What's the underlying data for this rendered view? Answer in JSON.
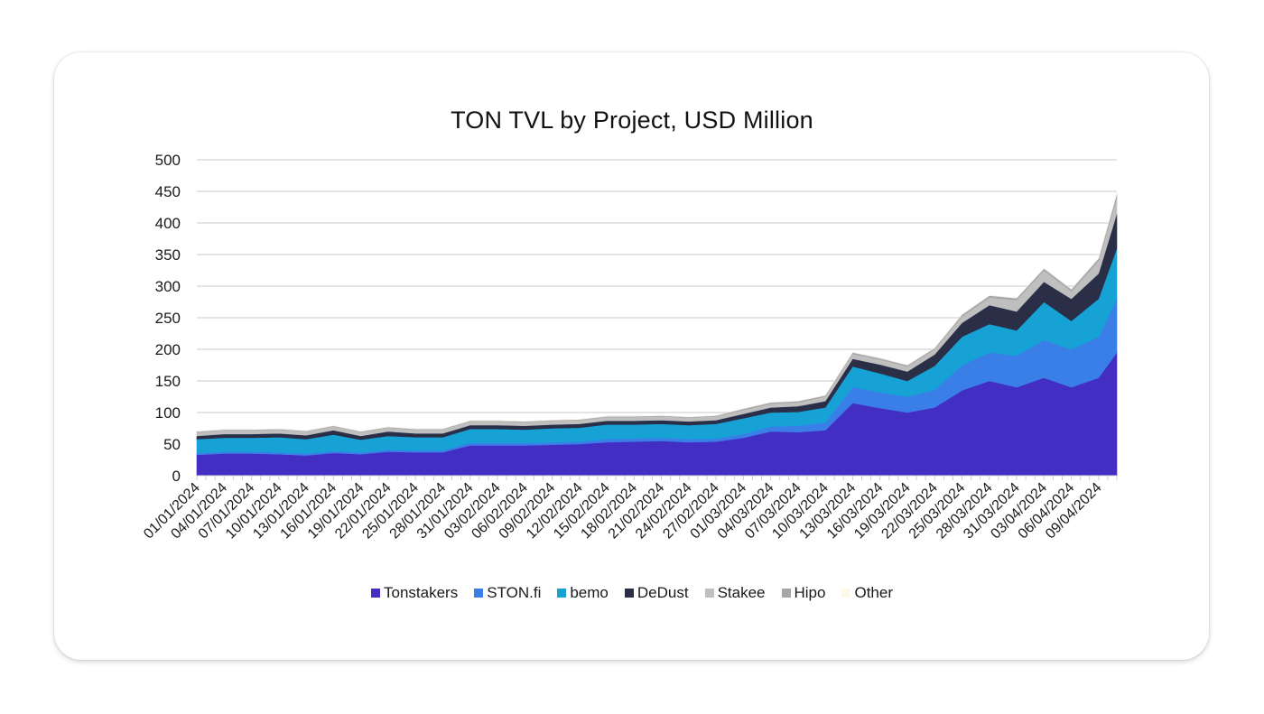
{
  "chart_data": {
    "type": "area",
    "stacked": true,
    "title": "TON TVL by Project, USD Million",
    "xlabel": "",
    "ylabel": "",
    "ylim": [
      0,
      500
    ],
    "yticks": [
      0,
      50,
      100,
      150,
      200,
      250,
      300,
      350,
      400,
      450,
      500
    ],
    "grid": true,
    "legend_position": "bottom",
    "x_tick_labels": [
      "01/01/2024",
      "04/01/2024",
      "07/01/2024",
      "10/01/2024",
      "13/01/2024",
      "16/01/2024",
      "19/01/2024",
      "22/01/2024",
      "25/01/2024",
      "28/01/2024",
      "31/01/2024",
      "03/02/2024",
      "06/02/2024",
      "09/02/2024",
      "12/02/2024",
      "15/02/2024",
      "18/02/2024",
      "21/02/2024",
      "24/02/2024",
      "27/02/2024",
      "01/03/2024",
      "04/03/2024",
      "07/03/2024",
      "10/03/2024",
      "13/03/2024",
      "16/03/2024",
      "19/03/2024",
      "22/03/2024",
      "25/03/2024",
      "28/03/2024",
      "31/03/2024",
      "03/04/2024",
      "06/04/2024",
      "09/04/2024"
    ],
    "x": [
      "01/01/2024",
      "04/01/2024",
      "07/01/2024",
      "10/01/2024",
      "13/01/2024",
      "16/01/2024",
      "19/01/2024",
      "22/01/2024",
      "25/01/2024",
      "28/01/2024",
      "31/01/2024",
      "03/02/2024",
      "06/02/2024",
      "09/02/2024",
      "12/02/2024",
      "15/02/2024",
      "18/02/2024",
      "21/02/2024",
      "24/02/2024",
      "27/02/2024",
      "01/03/2024",
      "04/03/2024",
      "07/03/2024",
      "10/03/2024",
      "13/03/2024",
      "16/03/2024",
      "19/03/2024",
      "22/03/2024",
      "25/03/2024",
      "28/03/2024",
      "31/03/2024",
      "03/04/2024",
      "06/04/2024",
      "09/04/2024",
      "11/04/2024"
    ],
    "series": [
      {
        "name": "Tonstakers",
        "color": "#432ec4",
        "values": [
          33,
          35,
          35,
          34,
          32,
          36,
          34,
          38,
          37,
          37,
          48,
          48,
          48,
          49,
          50,
          53,
          54,
          55,
          53,
          54,
          60,
          70,
          69,
          72,
          115,
          107,
          100,
          108,
          135,
          150,
          140,
          155,
          140,
          155,
          195
        ]
      },
      {
        "name": "STON.fi",
        "color": "#3a7ee8",
        "values": [
          3,
          3,
          3,
          3,
          3,
          3,
          3,
          3,
          3,
          3,
          4,
          4,
          4,
          4,
          4,
          5,
          5,
          5,
          5,
          5,
          6,
          8,
          10,
          12,
          25,
          25,
          25,
          28,
          40,
          45,
          50,
          60,
          60,
          65,
          85
        ]
      },
      {
        "name": "bemo",
        "color": "#17a2d6",
        "values": [
          22,
          22,
          22,
          24,
          23,
          26,
          20,
          22,
          21,
          21,
          22,
          22,
          21,
          22,
          22,
          23,
          22,
          22,
          22,
          23,
          25,
          22,
          22,
          24,
          33,
          30,
          25,
          38,
          45,
          45,
          40,
          60,
          45,
          60,
          80
        ]
      },
      {
        "name": "DeDust",
        "color": "#2a2f47",
        "values": [
          5,
          6,
          6,
          6,
          6,
          7,
          6,
          7,
          6,
          6,
          6,
          6,
          6,
          6,
          6,
          6,
          6,
          6,
          6,
          6,
          7,
          8,
          9,
          10,
          12,
          14,
          15,
          18,
          22,
          30,
          30,
          32,
          35,
          40,
          55
        ]
      },
      {
        "name": "Stakee",
        "color": "#bfbfbf",
        "values": [
          6,
          6,
          6,
          6,
          6,
          6,
          6,
          6,
          6,
          6,
          6,
          6,
          6,
          6,
          6,
          6,
          6,
          6,
          6,
          6,
          6,
          6,
          6,
          7,
          8,
          8,
          8,
          8,
          10,
          12,
          18,
          18,
          12,
          20,
          25
        ]
      },
      {
        "name": "Hipo",
        "color": "#a6a6a6",
        "values": [
          1,
          1,
          1,
          1,
          1,
          1,
          1,
          1,
          1,
          1,
          1,
          1,
          1,
          1,
          1,
          1,
          1,
          1,
          1,
          1,
          2,
          2,
          2,
          2,
          2,
          2,
          2,
          2,
          3,
          3,
          3,
          3,
          3,
          4,
          6
        ]
      },
      {
        "name": "Other",
        "color": "#fdf8e8",
        "values": [
          0,
          0,
          0,
          0,
          0,
          0,
          0,
          0,
          0,
          0,
          0,
          0,
          0,
          0,
          0,
          0,
          0,
          0,
          0,
          0,
          0,
          0,
          0,
          0,
          0,
          0,
          0,
          0,
          0,
          0,
          0,
          0,
          0,
          0,
          0
        ]
      }
    ]
  }
}
